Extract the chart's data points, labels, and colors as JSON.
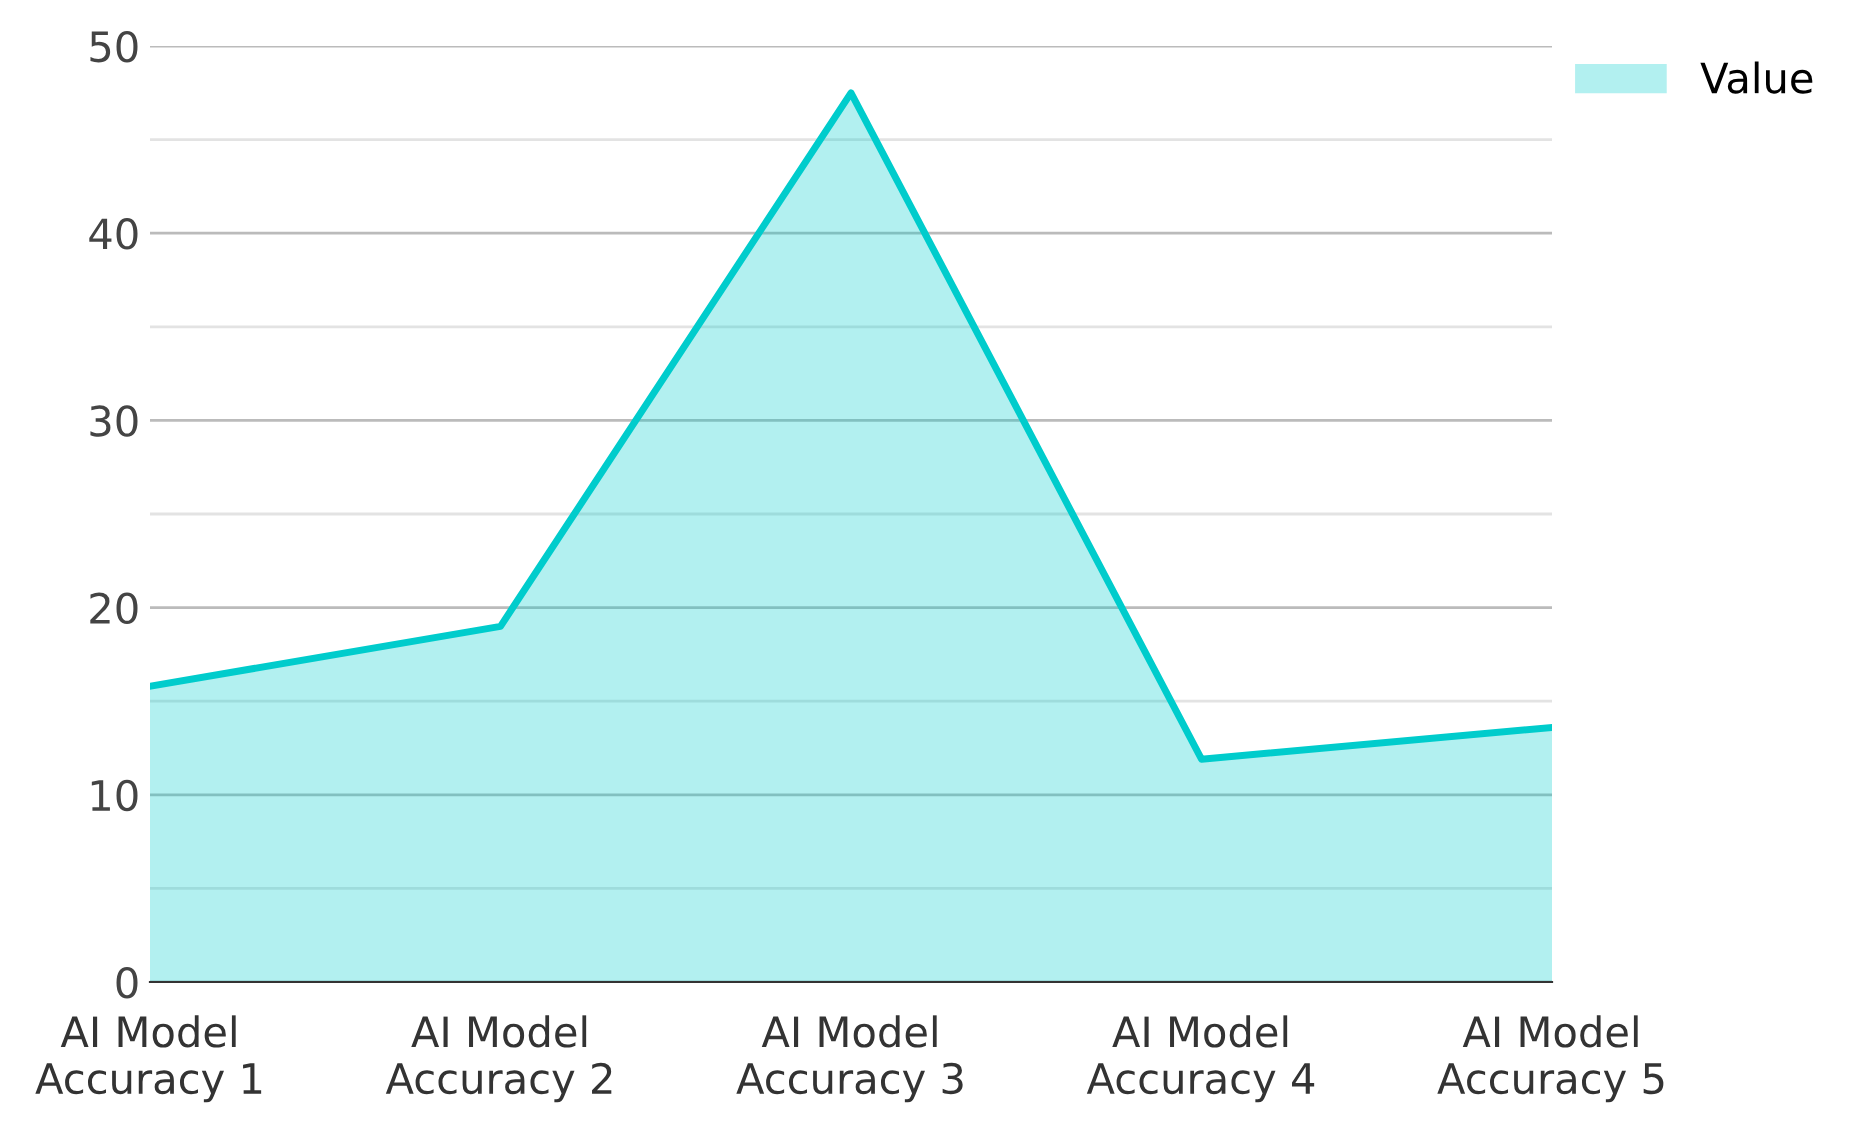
{
  "chart_data": {
    "type": "area",
    "categories": [
      "AI Model\nAccuracy 1",
      "AI Model\nAccuracy 2",
      "AI Model\nAccuracy 3",
      "AI Model\nAccuracy 4",
      "AI Model\nAccuracy 5"
    ],
    "series": [
      {
        "name": "Value",
        "color": "#00cccc",
        "values": [
          15.8,
          19.0,
          47.5,
          11.9,
          13.6
        ]
      }
    ],
    "ylim": [
      0,
      50
    ],
    "yticks": [
      0,
      {
        "value": 5,
        "label": null
      },
      10,
      {
        "value": 15,
        "label": null
      },
      20,
      {
        "value": 25,
        "label": null
      },
      30,
      {
        "value": 35,
        "label": null
      },
      40,
      {
        "value": 45,
        "label": null
      },
      50
    ],
    "grid": "y",
    "legend": "top right"
  }
}
